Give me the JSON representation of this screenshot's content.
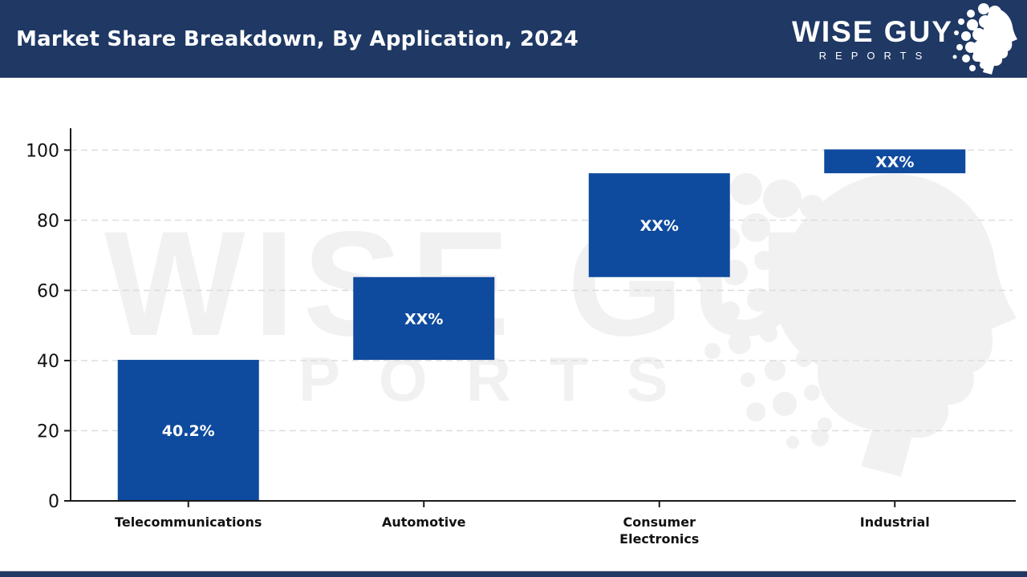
{
  "header": {
    "title": "Market Share Breakdown, By Application, 2024",
    "logo_line1": "WISE GUY",
    "logo_line2": "REPORTS",
    "bg_color": "#1f3864",
    "text_color": "#ffffff"
  },
  "watermark": {
    "line1": "WISE GUY",
    "line2": "PORTS"
  },
  "footer": {
    "bg_color": "#1f3864"
  },
  "chart_data": {
    "type": "bar",
    "subtype": "waterfall",
    "title": "Market Share Breakdown, By Application, 2024",
    "categories": [
      "Telecommunications",
      "Automotive",
      "Consumer Electronics",
      "Industrial"
    ],
    "category_label_lines": [
      [
        "Telecommunications"
      ],
      [
        "Automotive"
      ],
      [
        "Consumer",
        "Electronics"
      ],
      [
        "Industrial"
      ]
    ],
    "segments": [
      {
        "name": "Telecommunications",
        "base": 0,
        "top": 40.2,
        "value": 40.2,
        "label": "40.2%"
      },
      {
        "name": "Automotive",
        "base": 40.2,
        "top": 63.8,
        "value": 23.6,
        "label": "XX%"
      },
      {
        "name": "Consumer Electronics",
        "base": 63.8,
        "top": 93.4,
        "value": 29.6,
        "label": "XX%"
      },
      {
        "name": "Industrial",
        "base": 93.4,
        "top": 100.2,
        "value": 6.8,
        "label": "XX%"
      }
    ],
    "y_ticks": [
      0,
      20,
      40,
      60,
      80,
      100
    ],
    "ylim": [
      0,
      106
    ],
    "xlabel": "",
    "ylabel": "",
    "grid": "horizontal-dashed",
    "gridline_color": "#dcdcdc",
    "legend_position": "none",
    "bar_color": "#0e4a9d",
    "bar_label_color": "#ffffff",
    "axis_color": "#1a1a1a",
    "tick_label_color": "#111111"
  }
}
